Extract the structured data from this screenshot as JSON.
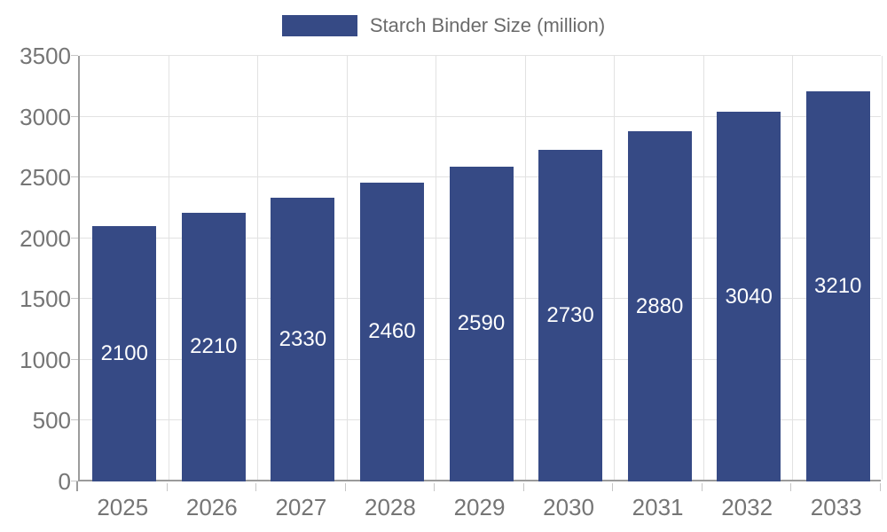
{
  "legend": {
    "label": "Starch Binder Size (million)"
  },
  "colors": {
    "bar": "#364a85",
    "grid": "#e2e2e2",
    "axis": "#9b9b9b",
    "tick_label": "#757575",
    "legend_text": "#6b6b6b",
    "bar_label": "#ffffff"
  },
  "chart_data": {
    "type": "bar",
    "title": "",
    "categories": [
      "2025",
      "2026",
      "2027",
      "2028",
      "2029",
      "2030",
      "2031",
      "2032",
      "2033"
    ],
    "values": [
      2100,
      2210,
      2330,
      2460,
      2590,
      2730,
      2880,
      3040,
      3210
    ],
    "series": [
      {
        "name": "Starch Binder Size (million)",
        "values": [
          2100,
          2210,
          2330,
          2460,
          2590,
          2730,
          2880,
          3040,
          3210
        ]
      }
    ],
    "xlabel": "",
    "ylabel": "",
    "ylim": [
      0,
      3500
    ],
    "yticks": [
      0,
      500,
      1000,
      1500,
      2000,
      2500,
      3000,
      3500
    ],
    "grid": true,
    "legend_position": "top",
    "bar_labels_inside": true
  }
}
